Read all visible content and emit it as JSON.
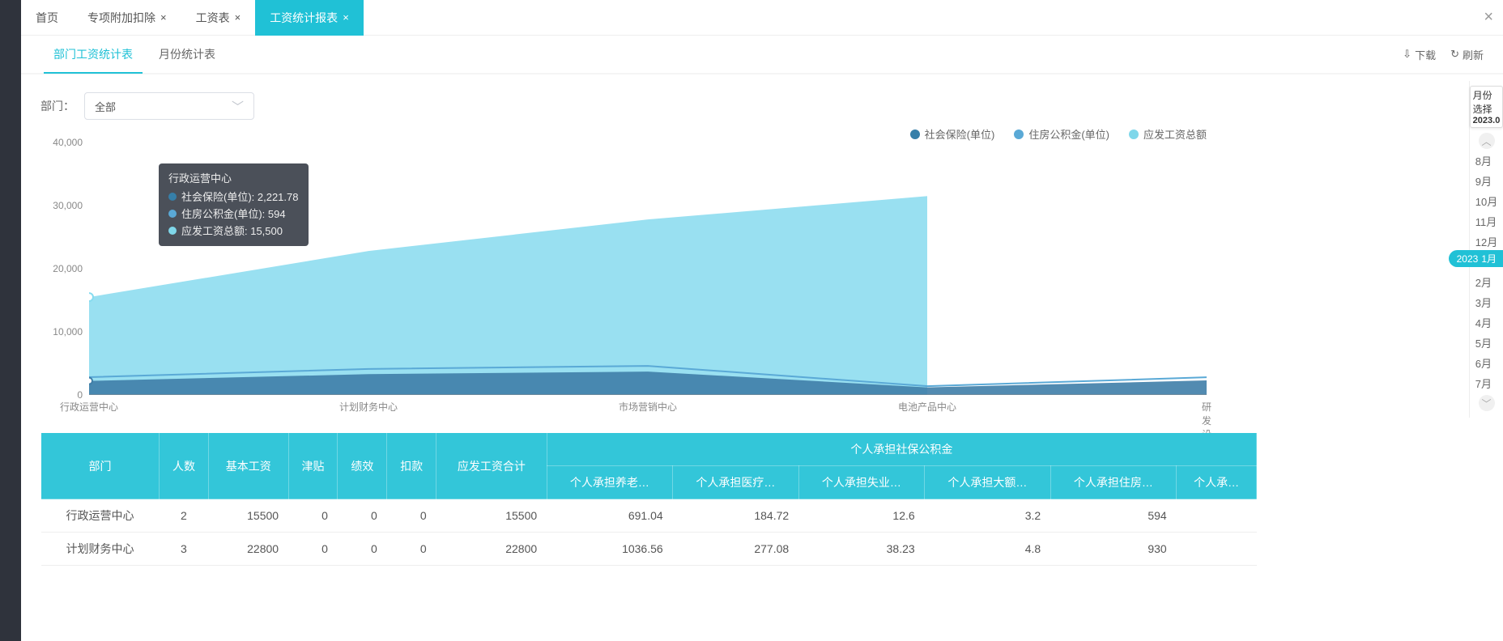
{
  "topTabs": {
    "items": [
      {
        "label": "首页",
        "closable": false
      },
      {
        "label": "专项附加扣除",
        "closable": true
      },
      {
        "label": "工资表",
        "closable": true
      },
      {
        "label": "工资统计报表",
        "closable": true,
        "active": true
      }
    ]
  },
  "subTabs": {
    "items": [
      {
        "label": "部门工资统计表",
        "active": true
      },
      {
        "label": "月份统计表"
      }
    ],
    "actions": {
      "download": "下载",
      "refresh": "刷新"
    }
  },
  "filter": {
    "label": "部门：",
    "selected": "全部"
  },
  "chart": {
    "ylim": [
      0,
      40000
    ],
    "ytick_step": 10000,
    "yticks": [
      "0",
      "10,000",
      "20,000",
      "30,000",
      "40,000"
    ],
    "categories": [
      "行政运营中心",
      "计划财务中心",
      "市场营销中心",
      "电池产品中心",
      "研发设计中心"
    ],
    "legend": [
      {
        "label": "社会保险(单位)",
        "color": "#367fa9"
      },
      {
        "label": "住房公积金(单位)",
        "color": "#5aa9d6"
      },
      {
        "label": "应发工资总额",
        "color": "#7fd7ea"
      }
    ],
    "series": {
      "social": [
        2221.78,
        3300,
        3700,
        1200,
        2300
      ],
      "fund": [
        594,
        820,
        900,
        200,
        500
      ],
      "salary": [
        15500,
        22800,
        27800,
        31500,
        0
      ]
    },
    "area_fill": "#87dbef",
    "line_dark": "#3f7ea8",
    "line_mid": "#5aa9d6",
    "tooltip": {
      "title": "行政运营中心",
      "rows": [
        {
          "dot": "#367fa9",
          "text": "社会保险(单位): 2,221.78"
        },
        {
          "dot": "#5aa9d6",
          "text": "住房公积金(单位): 594"
        },
        {
          "dot": "#7fd7ea",
          "text": "应发工资总额: 15,500"
        }
      ]
    }
  },
  "table": {
    "group_header": "个人承担社保公积金",
    "columns": [
      "部门",
      "人数",
      "基本工资",
      "津贴",
      "绩效",
      "扣款",
      "应发工资合计",
      "个人承担养老…",
      "个人承担医疗…",
      "个人承担失业…",
      "个人承担大额…",
      "个人承担住房…",
      "个人承…"
    ],
    "rows": [
      [
        "行政运营中心",
        "2",
        "15500",
        "0",
        "0",
        "0",
        "15500",
        "691.04",
        "184.72",
        "12.6",
        "3.2",
        "594",
        ""
      ],
      [
        "计划财务中心",
        "3",
        "22800",
        "0",
        "0",
        "0",
        "22800",
        "1036.56",
        "277.08",
        "38.23",
        "4.8",
        "930",
        ""
      ]
    ]
  },
  "monthPanel": {
    "header": "月份选择",
    "year": "2023.0",
    "months": [
      "8月",
      "9月",
      "10月",
      "11月",
      "12月",
      "1月",
      "2月",
      "3月",
      "4月",
      "5月",
      "6月",
      "7月"
    ],
    "selectedIndex": 5,
    "badgeYear": "2023",
    "badgeMonth": "1月"
  }
}
